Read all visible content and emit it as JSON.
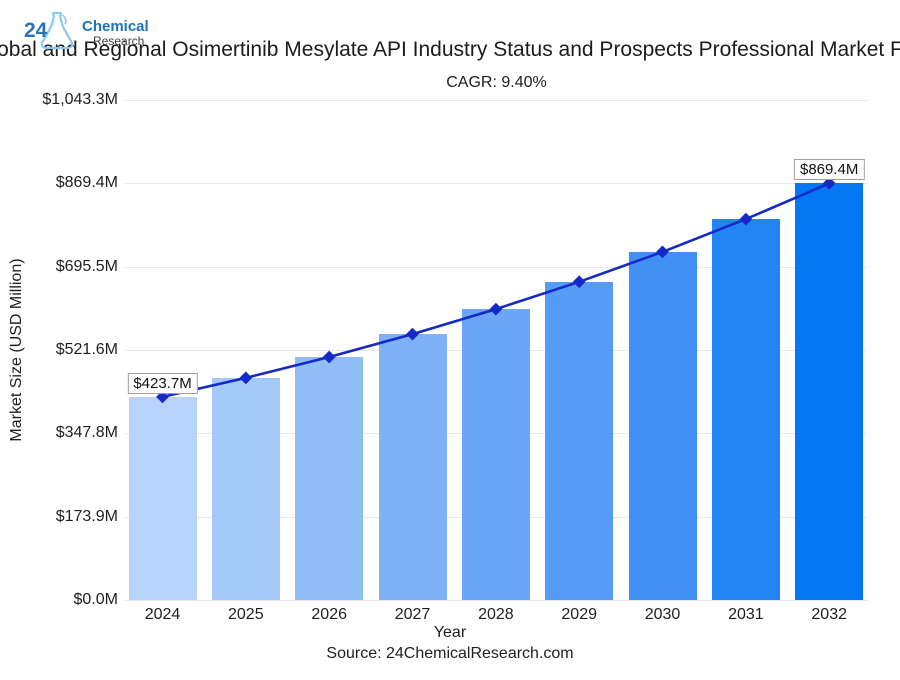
{
  "logo": {
    "number": "24",
    "word1": "Chemical",
    "word2": "Research"
  },
  "header": {
    "title_visible": "obal and Regional Osimertinib Mesylate API Industry Status and Prospects Professional Market F",
    "cagr_label": "CAGR: 9.40%"
  },
  "chart_data": {
    "type": "bar",
    "overlay_line": true,
    "title": "CAGR: 9.40%",
    "categories": [
      "2024",
      "2025",
      "2026",
      "2027",
      "2028",
      "2029",
      "2030",
      "2031",
      "2032"
    ],
    "values": [
      423.7,
      463.5,
      507.1,
      554.8,
      606.9,
      664.0,
      726.4,
      794.7,
      869.4
    ],
    "xlabel": "Year",
    "ylabel": "Market Size (USD Million)",
    "ylim": [
      0,
      1043.3
    ],
    "ytick_values": [
      0,
      173.9,
      347.8,
      521.6,
      695.5,
      869.4,
      1043.3
    ],
    "ytick_labels": [
      "$0.0M",
      "$173.9M",
      "$347.8M",
      "$521.6M",
      "$695.5M",
      "$869.4M",
      "$1,043.3M"
    ],
    "grid": true,
    "legend": "none",
    "annotations": [
      {
        "index": 0,
        "label": "$423.7M"
      },
      {
        "index": 8,
        "label": "$869.4M"
      }
    ],
    "bar_colors": [
      "#b7d3f9",
      "#a4c8f8",
      "#91bdf7",
      "#7eb2f7",
      "#6ba7f6",
      "#569bf5",
      "#4190f4",
      "#2384f3",
      "#0478f2"
    ],
    "line_color": "#1429c8",
    "marker": "diamond"
  },
  "footer": {
    "source": "Source: 24ChemicalResearch.com"
  }
}
